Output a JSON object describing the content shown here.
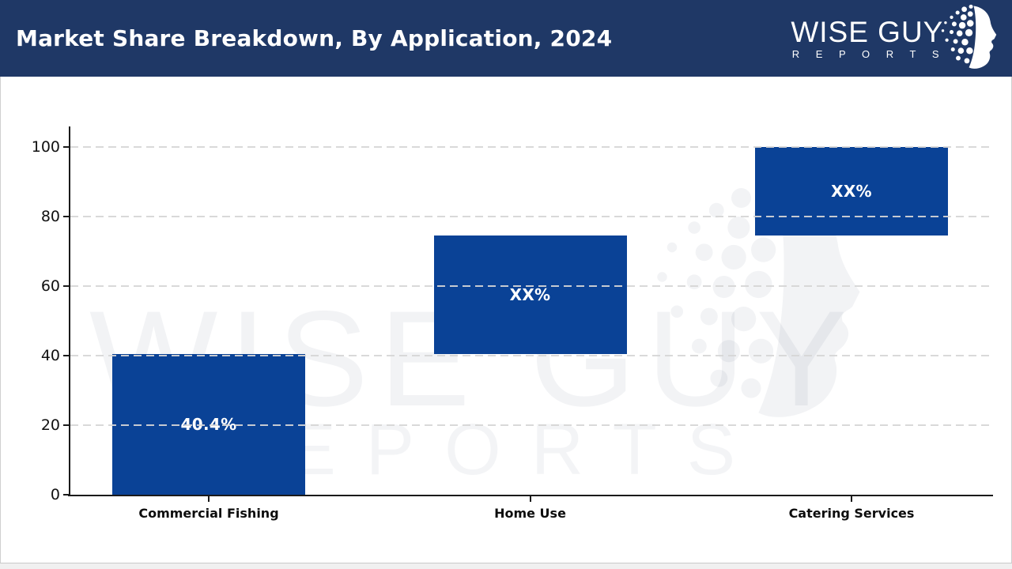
{
  "header": {
    "title": "Market Share Breakdown, By Application, 2024",
    "bg_color": "#1f3866",
    "logo": {
      "wordmark": "WISE GUY",
      "subtext": "R E P O R T S"
    }
  },
  "watermark": {
    "wordmark": "WISE GUY",
    "subtext": "REPORTS"
  },
  "chart_data": {
    "type": "bar",
    "variant": "floating-segment-bars",
    "title": "Market Share Breakdown, By Application, 2024",
    "categories": [
      "Commercial Fishing",
      "Home Use",
      "Catering Services"
    ],
    "series": [
      {
        "name": "Market Share (%)",
        "segments": [
          {
            "from": 0,
            "to": 40.4
          },
          {
            "from": 40.4,
            "to": 74.6
          },
          {
            "from": 74.6,
            "to": 100
          }
        ]
      }
    ],
    "bar_labels": [
      "40.4%",
      "XX%",
      "XX%"
    ],
    "xlabel": "",
    "ylabel": "",
    "ylim": [
      0,
      100
    ],
    "yticks": [
      0,
      20,
      40,
      60,
      80,
      100
    ],
    "grid": {
      "axis": "y",
      "style": "dashed",
      "color": "#d6d6d6"
    },
    "legend": null,
    "bar_color": "#0a4296",
    "bar_label_color": "#ffffff",
    "axis_color": "#1a1a1a"
  }
}
